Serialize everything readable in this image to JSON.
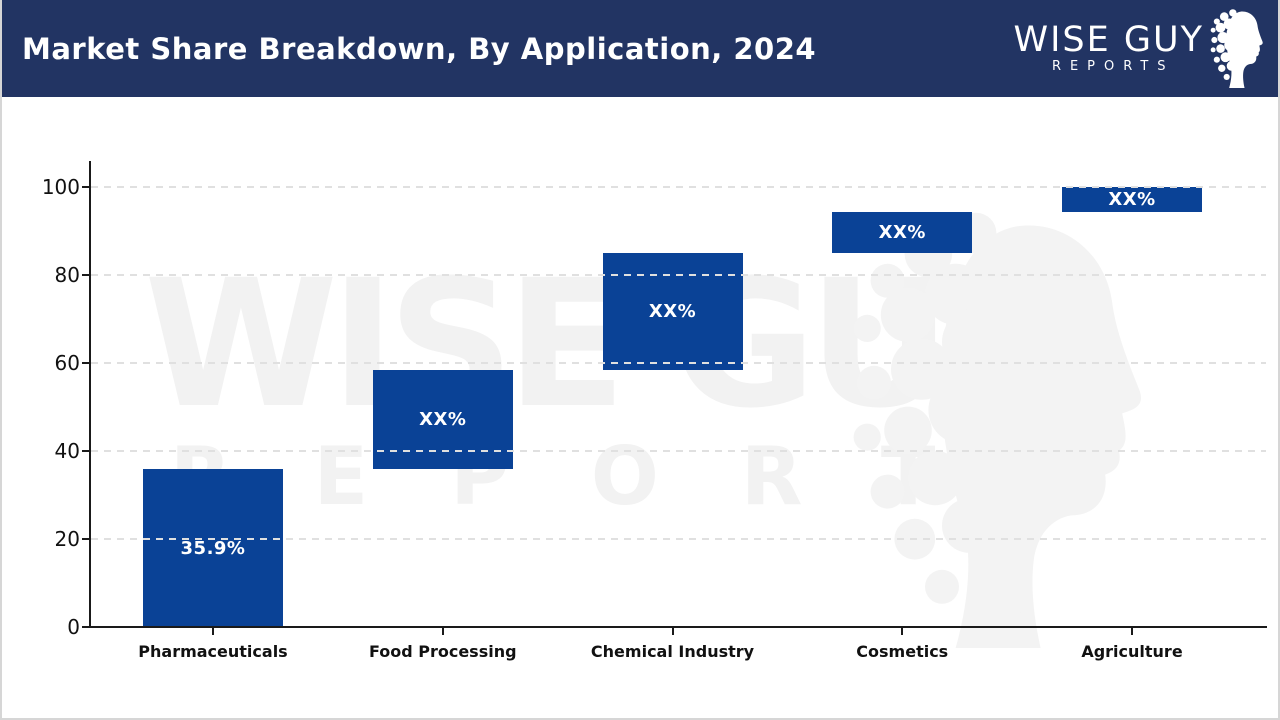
{
  "header": {
    "title": "Market Share Breakdown, By Application, 2024",
    "logo": {
      "line1": "WISE GUY",
      "line2": "REPORTS"
    }
  },
  "watermark": {
    "line1": "WISE GUY",
    "line2": "REPORTS"
  },
  "chart_data": {
    "type": "bar",
    "subtype": "waterfall",
    "title": "Market Share Breakdown, By Application, 2024",
    "categories": [
      "Pharmaceuticals",
      "Food Processing",
      "Chemical Industry",
      "Cosmetics",
      "Agriculture"
    ],
    "segments": [
      {
        "category": "Pharmaceuticals",
        "start": 0,
        "end": 35.9,
        "label": "35.9%"
      },
      {
        "category": "Food Processing",
        "start": 35.9,
        "end": 58.4,
        "label": "XX%"
      },
      {
        "category": "Chemical Industry",
        "start": 58.4,
        "end": 85.0,
        "label": "XX%"
      },
      {
        "category": "Cosmetics",
        "start": 85.0,
        "end": 94.3,
        "label": "XX%"
      },
      {
        "category": "Agriculture",
        "start": 94.3,
        "end": 100.0,
        "label": "XX%"
      }
    ],
    "yticks": [
      0,
      20,
      40,
      60,
      80,
      100
    ],
    "ylim": [
      0,
      105
    ],
    "xlabel": "",
    "ylabel": "",
    "grid": "horizontal-dashed",
    "legend": "none"
  },
  "colors": {
    "header_bg": "#223463",
    "bar": "#0a4296",
    "bar_label": "#ffffff",
    "axis": "#1a1a1a",
    "grid": "#e0e0e0",
    "watermark": "#f2f2f2",
    "page_border": "#d6d6d6",
    "title_text": "#ffffff"
  }
}
